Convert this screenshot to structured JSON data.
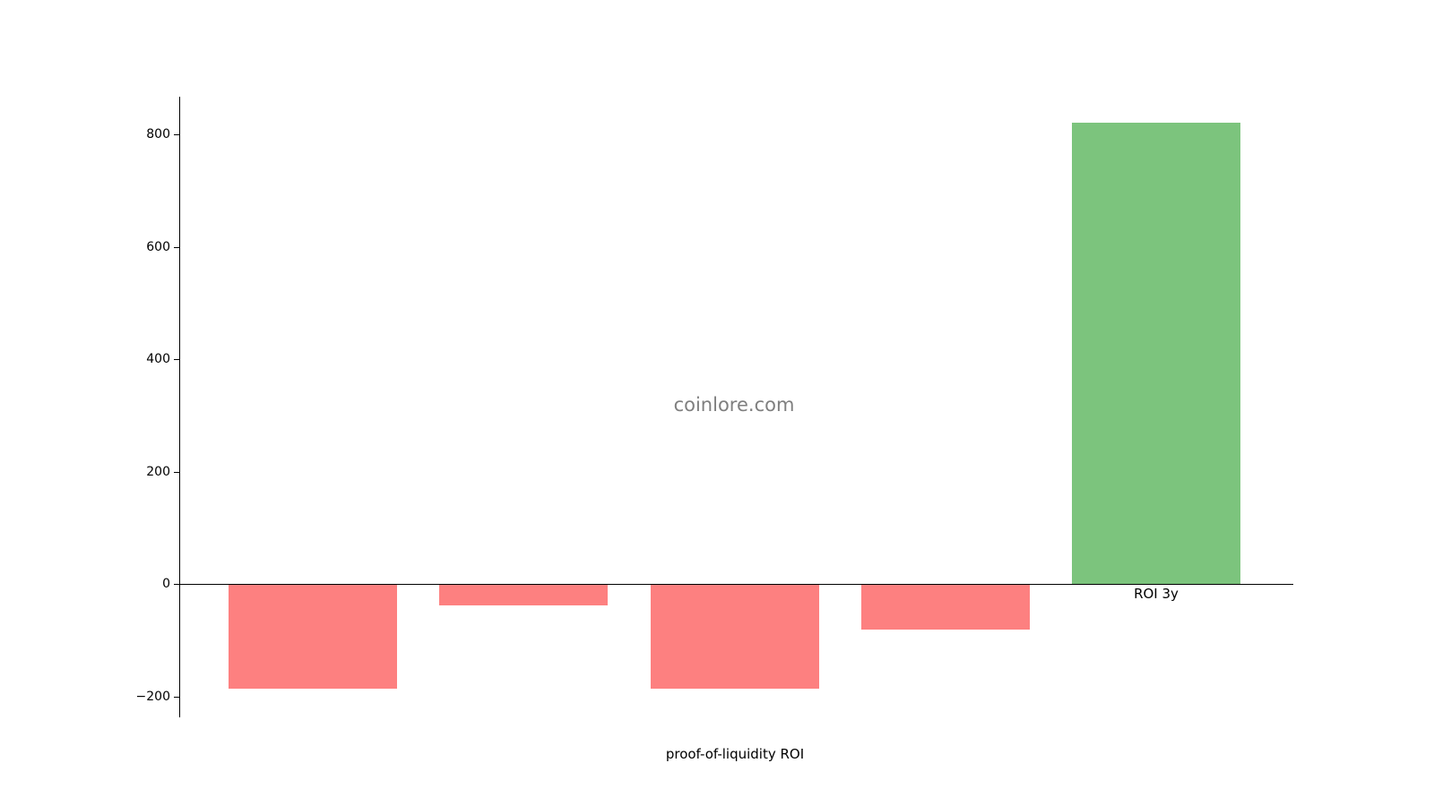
{
  "chart_data": {
    "type": "bar",
    "title": "",
    "xlabel": "proof-of-liquidity ROI",
    "ylabel": "",
    "watermark": "coinlore.com",
    "ylim": [
      -237,
      867
    ],
    "yticks": [
      800,
      600,
      400,
      200,
      0,
      -200
    ],
    "grid": false,
    "legend": null,
    "bars": [
      {
        "label": "",
        "value": -187,
        "color": "#fd8080"
      },
      {
        "label": "",
        "value": -39,
        "color": "#fd8080"
      },
      {
        "label": "",
        "value": -186,
        "color": "#fd8080"
      },
      {
        "label": "",
        "value": -81,
        "color": "#fd8080"
      },
      {
        "label": "ROI 3y",
        "value": 820,
        "color": "#7cc47d"
      }
    ],
    "colors": {
      "negative_bar": "#fd8080",
      "positive_bar": "#7cc47d",
      "axis": "#000000",
      "watermark": "#7f7f7f"
    }
  }
}
